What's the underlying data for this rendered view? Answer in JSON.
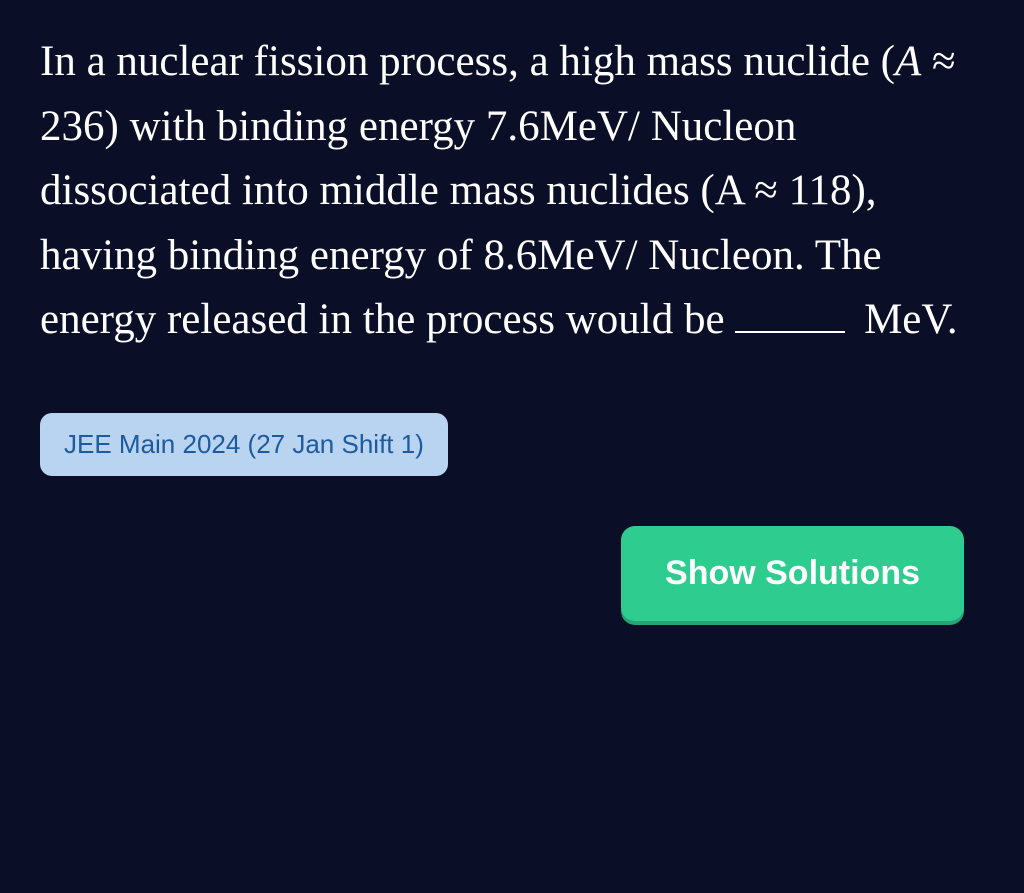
{
  "question": {
    "line1_prefix": "In a nuclear fission process, a high mass nuclide (",
    "formula1_var": "A",
    "formula1_approx": " ≈ ",
    "formula1_val": "236",
    "line1_suffix": ") with binding energy ",
    "be1_value": "7.6MeV/",
    "be1_unit": " Nucleon dissociated into middle mass nuclides (",
    "formula2_var": "A",
    "formula2_approx": " ≈ ",
    "formula2_val": "118",
    "line2_suffix": "), having binding energy of ",
    "be2_value": "8.6MeV/",
    "be2_unit": " Nucleon. The energy released in the process would be ",
    "answer_unit": " MeV."
  },
  "tag": {
    "label": "JEE Main 2024 (27 Jan Shift 1)"
  },
  "button": {
    "show_solutions": "Show Solutions"
  },
  "styles": {
    "background_color": "#0a0e27",
    "text_color": "#ffffff",
    "tag_bg": "#b8d4f0",
    "tag_text": "#1e5a9e",
    "button_bg": "#2ecc8f",
    "button_text": "#ffffff",
    "question_fontsize": 43,
    "tag_fontsize": 26,
    "button_fontsize": 34
  }
}
